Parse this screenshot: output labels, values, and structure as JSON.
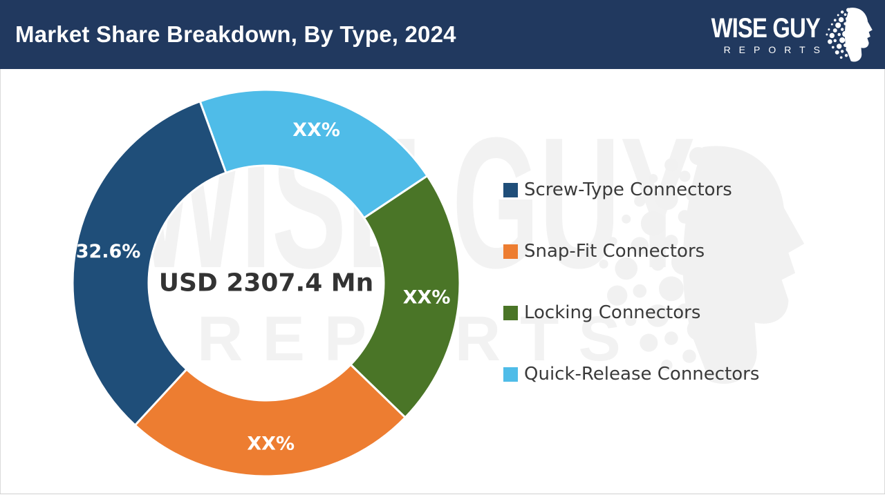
{
  "header": {
    "title": "Market Share Breakdown, By Type, 2024"
  },
  "logo": {
    "line1": "WISE GUY",
    "line2": "REPORTS"
  },
  "watermark": {
    "line1": "WISE GUY",
    "line2": "REPORTS"
  },
  "colors": {
    "header_bg": "#21395F",
    "navy": "#1F4E79",
    "orange": "#ED7D31",
    "green": "#4A7527",
    "light_blue": "#4FBCE8",
    "segment_label_text": "#FFFFFF",
    "center_text": "#333333",
    "legend_text": "#3A3A3A",
    "watermark": "#F2F2F2"
  },
  "chart_data": {
    "type": "pie",
    "subtype": "donut",
    "title": "Market Share Breakdown, By Type, 2024",
    "center_label": "USD 2307.4 Mn",
    "start_angle_deg": -20,
    "direction": "clockwise",
    "outer_radius_px": 280,
    "inner_radius_px": 170,
    "legend_position": "right",
    "segments": [
      {
        "name": "Quick-Release Connectors",
        "label": "XX%",
        "pct_est": 21.2,
        "color": "#4FBCE8"
      },
      {
        "name": "Locking Connectors",
        "label": "XX%",
        "pct_est": 21.6,
        "color": "#4A7527"
      },
      {
        "name": "Snap-Fit Connectors",
        "label": "XX%",
        "pct_est": 24.6,
        "color": "#ED7D31"
      },
      {
        "name": "Screw-Type Connectors",
        "label": "32.6%",
        "pct_est": 32.6,
        "color": "#1F4E79"
      }
    ],
    "legend": [
      {
        "label": "Screw-Type Connectors",
        "color": "#1F4E79"
      },
      {
        "label": "Snap-Fit Connectors",
        "color": "#ED7D31"
      },
      {
        "label": "Locking Connectors",
        "color": "#4A7527"
      },
      {
        "label": "Quick-Release Connectors",
        "color": "#4FBCE8"
      }
    ]
  }
}
